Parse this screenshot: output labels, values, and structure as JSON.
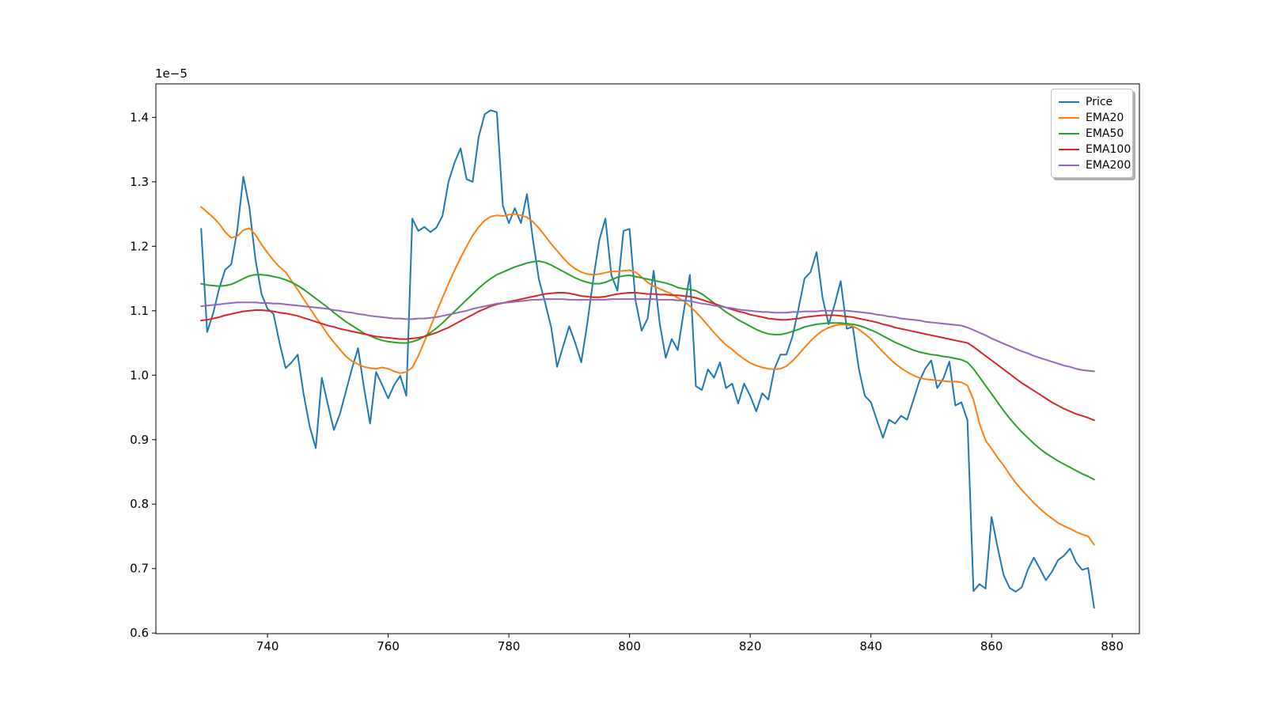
{
  "figure": {
    "background": "#ffffff",
    "axes_edge_color": "#000000",
    "tick_label_color": "#000000"
  },
  "chart_data": {
    "type": "line",
    "title": "",
    "xlabel": "",
    "ylabel": "",
    "offset_text": "1e−5",
    "grid": false,
    "legend_position": "upper right",
    "x_start": 729,
    "x_step": 1,
    "xlim": [
      721.5,
      884.5
    ],
    "ylim": [
      0.599,
      1.452
    ],
    "x_ticks": [
      740,
      760,
      780,
      800,
      820,
      840,
      860,
      880
    ],
    "y_ticks": [
      0.6,
      0.7,
      0.8,
      0.9,
      1.0,
      1.1,
      1.2,
      1.3,
      1.4
    ],
    "series": [
      {
        "name": "Price",
        "color": "#1f77b4",
        "values": [
          1.227,
          1.067,
          1.096,
          1.135,
          1.164,
          1.172,
          1.225,
          1.308,
          1.26,
          1.18,
          1.126,
          1.103,
          1.095,
          1.05,
          1.011,
          1.02,
          1.032,
          0.97,
          0.92,
          0.887,
          0.996,
          0.955,
          0.915,
          0.94,
          0.975,
          1.01,
          1.042,
          0.98,
          0.925,
          1.005,
          0.985,
          0.964,
          0.985,
          0.999,
          0.968,
          1.243,
          1.224,
          1.23,
          1.222,
          1.229,
          1.247,
          1.3,
          1.33,
          1.352,
          1.304,
          1.3,
          1.37,
          1.405,
          1.411,
          1.408,
          1.263,
          1.236,
          1.259,
          1.236,
          1.281,
          1.21,
          1.148,
          1.113,
          1.075,
          1.013,
          1.045,
          1.076,
          1.05,
          1.02,
          1.08,
          1.15,
          1.21,
          1.243,
          1.155,
          1.131,
          1.224,
          1.227,
          1.116,
          1.069,
          1.088,
          1.162,
          1.08,
          1.027,
          1.056,
          1.039,
          1.1,
          1.156,
          0.983,
          0.977,
          1.009,
          0.996,
          1.02,
          0.98,
          0.987,
          0.956,
          0.987,
          0.968,
          0.944,
          0.972,
          0.962,
          1.009,
          1.032,
          1.032,
          1.06,
          1.103,
          1.15,
          1.16,
          1.191,
          1.12,
          1.079,
          1.11,
          1.146,
          1.072,
          1.075,
          1.01,
          0.968,
          0.958,
          0.93,
          0.903,
          0.931,
          0.925,
          0.937,
          0.931,
          0.96,
          0.99,
          1.01,
          1.023,
          0.98,
          0.995,
          1.021,
          0.953,
          0.958,
          0.93,
          0.665,
          0.676,
          0.669,
          0.78,
          0.733,
          0.69,
          0.67,
          0.664,
          0.671,
          0.698,
          0.717,
          0.7,
          0.682,
          0.695,
          0.713,
          0.72,
          0.731,
          0.71,
          0.698,
          0.701,
          0.639
        ]
      },
      {
        "name": "EMA20",
        "color": "#ff7f0e",
        "values": [
          1.261,
          1.253,
          1.245,
          1.235,
          1.222,
          1.213,
          1.216,
          1.225,
          1.228,
          1.218,
          1.203,
          1.19,
          1.178,
          1.168,
          1.16,
          1.146,
          1.133,
          1.118,
          1.104,
          1.09,
          1.077,
          1.063,
          1.051,
          1.04,
          1.029,
          1.022,
          1.017,
          1.013,
          1.011,
          1.01,
          1.012,
          1.01,
          1.006,
          1.003,
          1.005,
          1.012,
          1.03,
          1.052,
          1.075,
          1.098,
          1.12,
          1.142,
          1.163,
          1.182,
          1.2,
          1.217,
          1.23,
          1.24,
          1.246,
          1.248,
          1.247,
          1.249,
          1.25,
          1.248,
          1.245,
          1.238,
          1.228,
          1.216,
          1.204,
          1.193,
          1.182,
          1.172,
          1.165,
          1.16,
          1.157,
          1.156,
          1.157,
          1.159,
          1.161,
          1.161,
          1.162,
          1.163,
          1.16,
          1.152,
          1.144,
          1.138,
          1.134,
          1.13,
          1.126,
          1.12,
          1.115,
          1.107,
          1.098,
          1.088,
          1.077,
          1.066,
          1.056,
          1.047,
          1.04,
          1.032,
          1.025,
          1.019,
          1.015,
          1.012,
          1.01,
          1.009,
          1.01,
          1.014,
          1.022,
          1.032,
          1.043,
          1.053,
          1.062,
          1.069,
          1.074,
          1.077,
          1.079,
          1.078,
          1.076,
          1.071,
          1.064,
          1.056,
          1.046,
          1.036,
          1.027,
          1.018,
          1.011,
          1.005,
          1.0,
          0.996,
          0.994,
          0.993,
          0.992,
          0.991,
          0.99,
          0.99,
          0.989,
          0.984,
          0.962,
          0.925,
          0.899,
          0.886,
          0.872,
          0.86,
          0.846,
          0.833,
          0.822,
          0.812,
          0.802,
          0.793,
          0.785,
          0.778,
          0.771,
          0.766,
          0.762,
          0.757,
          0.753,
          0.75,
          0.737
        ]
      },
      {
        "name": "EMA50",
        "color": "#2ca02c",
        "values": [
          1.142,
          1.14,
          1.139,
          1.138,
          1.139,
          1.141,
          1.145,
          1.15,
          1.154,
          1.156,
          1.156,
          1.155,
          1.153,
          1.151,
          1.148,
          1.144,
          1.139,
          1.133,
          1.126,
          1.119,
          1.112,
          1.105,
          1.097,
          1.09,
          1.083,
          1.077,
          1.071,
          1.065,
          1.061,
          1.057,
          1.054,
          1.052,
          1.051,
          1.05,
          1.05,
          1.052,
          1.055,
          1.06,
          1.066,
          1.073,
          1.081,
          1.09,
          1.099,
          1.108,
          1.117,
          1.126,
          1.135,
          1.143,
          1.15,
          1.156,
          1.16,
          1.164,
          1.168,
          1.171,
          1.174,
          1.176,
          1.177,
          1.175,
          1.171,
          1.166,
          1.161,
          1.156,
          1.151,
          1.147,
          1.144,
          1.142,
          1.142,
          1.144,
          1.148,
          1.152,
          1.154,
          1.155,
          1.153,
          1.151,
          1.149,
          1.147,
          1.145,
          1.143,
          1.14,
          1.136,
          1.134,
          1.133,
          1.131,
          1.126,
          1.119,
          1.112,
          1.105,
          1.098,
          1.092,
          1.086,
          1.081,
          1.076,
          1.071,
          1.067,
          1.064,
          1.063,
          1.063,
          1.065,
          1.068,
          1.071,
          1.075,
          1.077,
          1.079,
          1.08,
          1.081,
          1.081,
          1.081,
          1.08,
          1.079,
          1.077,
          1.074,
          1.07,
          1.066,
          1.061,
          1.056,
          1.051,
          1.047,
          1.043,
          1.039,
          1.036,
          1.034,
          1.032,
          1.031,
          1.029,
          1.028,
          1.026,
          1.024,
          1.02,
          1.01,
          0.997,
          0.984,
          0.971,
          0.958,
          0.945,
          0.933,
          0.922,
          0.912,
          0.903,
          0.894,
          0.886,
          0.879,
          0.873,
          0.867,
          0.862,
          0.857,
          0.852,
          0.847,
          0.843,
          0.838
        ]
      },
      {
        "name": "EMA100",
        "color": "#d62728",
        "values": [
          1.085,
          1.086,
          1.088,
          1.09,
          1.093,
          1.095,
          1.097,
          1.099,
          1.1,
          1.101,
          1.101,
          1.1,
          1.099,
          1.097,
          1.096,
          1.094,
          1.092,
          1.089,
          1.086,
          1.083,
          1.08,
          1.077,
          1.075,
          1.072,
          1.07,
          1.068,
          1.066,
          1.064,
          1.062,
          1.06,
          1.059,
          1.058,
          1.057,
          1.056,
          1.056,
          1.057,
          1.058,
          1.06,
          1.063,
          1.066,
          1.07,
          1.074,
          1.079,
          1.084,
          1.089,
          1.094,
          1.099,
          1.103,
          1.107,
          1.11,
          1.112,
          1.114,
          1.116,
          1.118,
          1.12,
          1.122,
          1.124,
          1.126,
          1.127,
          1.128,
          1.128,
          1.127,
          1.125,
          1.123,
          1.122,
          1.121,
          1.121,
          1.122,
          1.124,
          1.126,
          1.127,
          1.128,
          1.128,
          1.127,
          1.126,
          1.126,
          1.125,
          1.125,
          1.124,
          1.124,
          1.123,
          1.122,
          1.12,
          1.117,
          1.114,
          1.111,
          1.108,
          1.105,
          1.102,
          1.099,
          1.097,
          1.094,
          1.092,
          1.09,
          1.088,
          1.087,
          1.086,
          1.086,
          1.087,
          1.088,
          1.09,
          1.091,
          1.092,
          1.093,
          1.093,
          1.093,
          1.092,
          1.091,
          1.09,
          1.088,
          1.086,
          1.084,
          1.082,
          1.079,
          1.077,
          1.074,
          1.072,
          1.07,
          1.068,
          1.066,
          1.064,
          1.062,
          1.06,
          1.058,
          1.056,
          1.054,
          1.052,
          1.05,
          1.044,
          1.037,
          1.03,
          1.023,
          1.016,
          1.009,
          1.002,
          0.995,
          0.988,
          0.982,
          0.976,
          0.97,
          0.964,
          0.958,
          0.953,
          0.948,
          0.944,
          0.94,
          0.937,
          0.934,
          0.93
        ]
      },
      {
        "name": "EMA200",
        "color": "#9467bd",
        "values": [
          1.107,
          1.108,
          1.109,
          1.11,
          1.111,
          1.112,
          1.113,
          1.113,
          1.113,
          1.113,
          1.112,
          1.112,
          1.111,
          1.111,
          1.11,
          1.109,
          1.108,
          1.107,
          1.106,
          1.105,
          1.104,
          1.103,
          1.101,
          1.1,
          1.098,
          1.097,
          1.095,
          1.094,
          1.092,
          1.091,
          1.09,
          1.089,
          1.088,
          1.088,
          1.087,
          1.087,
          1.088,
          1.088,
          1.089,
          1.09,
          1.092,
          1.094,
          1.096,
          1.098,
          1.1,
          1.103,
          1.105,
          1.107,
          1.109,
          1.111,
          1.112,
          1.113,
          1.114,
          1.115,
          1.116,
          1.117,
          1.117,
          1.118,
          1.118,
          1.118,
          1.118,
          1.117,
          1.117,
          1.117,
          1.117,
          1.117,
          1.117,
          1.117,
          1.118,
          1.118,
          1.118,
          1.118,
          1.118,
          1.118,
          1.118,
          1.118,
          1.117,
          1.117,
          1.117,
          1.116,
          1.116,
          1.115,
          1.113,
          1.111,
          1.11,
          1.108,
          1.107,
          1.105,
          1.104,
          1.102,
          1.101,
          1.1,
          1.099,
          1.098,
          1.098,
          1.097,
          1.097,
          1.097,
          1.098,
          1.098,
          1.099,
          1.099,
          1.099,
          1.1,
          1.1,
          1.1,
          1.1,
          1.1,
          1.099,
          1.098,
          1.097,
          1.096,
          1.094,
          1.093,
          1.091,
          1.09,
          1.088,
          1.087,
          1.086,
          1.085,
          1.083,
          1.082,
          1.081,
          1.08,
          1.079,
          1.078,
          1.077,
          1.074,
          1.07,
          1.066,
          1.062,
          1.057,
          1.053,
          1.049,
          1.045,
          1.041,
          1.037,
          1.034,
          1.03,
          1.027,
          1.024,
          1.021,
          1.018,
          1.015,
          1.013,
          1.01,
          1.008,
          1.007,
          1.006
        ]
      }
    ]
  }
}
